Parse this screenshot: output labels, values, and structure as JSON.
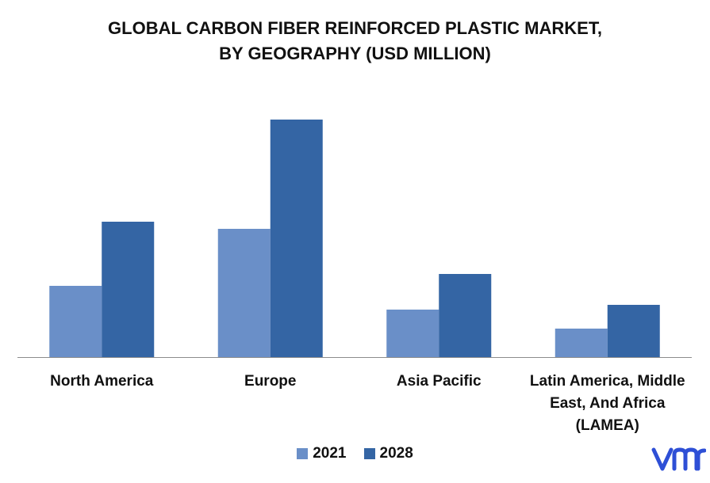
{
  "title_line1": "GLOBAL CARBON FIBER REINFORCED PLASTIC MARKET,",
  "title_line2": "BY GEOGRAPHY (USD MILLION)",
  "colors": {
    "series_2021": "#6A8FC8",
    "series_2028": "#3465A4",
    "logo": "#2E4FD6",
    "axis": "#8C8C8C"
  },
  "logo_text": "vmr",
  "chart_data": {
    "type": "bar",
    "title": "GLOBAL CARBON FIBER REINFORCED PLASTIC MARKET, BY GEOGRAPHY (USD MILLION)",
    "categories": [
      [
        "North America"
      ],
      [
        "Europe"
      ],
      [
        "Asia Pacific"
      ],
      [
        "Latin America, Middle",
        "East, And Africa",
        "(LAMEA)"
      ]
    ],
    "series": [
      {
        "name": "2021",
        "values": [
          30,
          54,
          20,
          12
        ]
      },
      {
        "name": "2028",
        "values": [
          57,
          100,
          35,
          22
        ]
      }
    ],
    "ylim": [
      0,
      100
    ],
    "grid": false,
    "legend_position": "bottom"
  }
}
